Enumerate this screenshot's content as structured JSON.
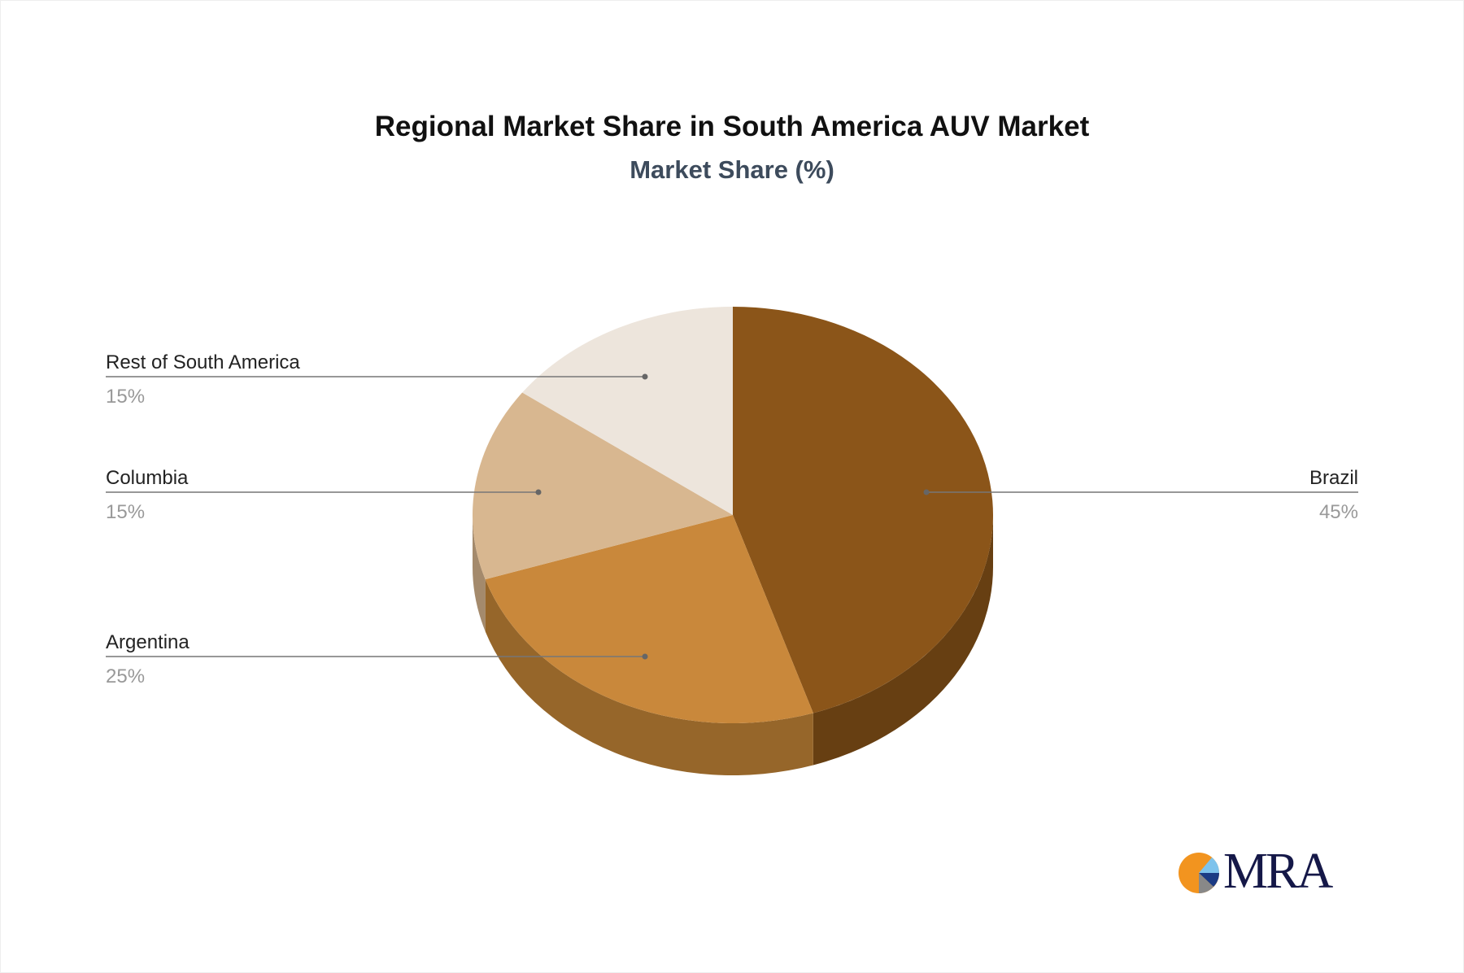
{
  "chart_data": {
    "type": "pie",
    "title": "Regional Market Share in South America AUV Market",
    "subtitle": "Market Share (%)",
    "categories": [
      "Brazil",
      "Argentina",
      "Columbia",
      "Rest of South America"
    ],
    "values": [
      45,
      25,
      15,
      15
    ],
    "labels": [
      "45%",
      "25%",
      "15%",
      "15%"
    ],
    "colors": [
      "#8B5519",
      "#C9883B",
      "#D8B790",
      "#EDE5DC"
    ],
    "side_colors": [
      "#673F12",
      "#96662A",
      "#A48A6C",
      "#B3AAA0"
    ],
    "style": "3d"
  },
  "logo": {
    "text": "MRA",
    "colors": [
      "#F2941F",
      "#7EC3EC",
      "#1B3B84",
      "#888888"
    ]
  }
}
